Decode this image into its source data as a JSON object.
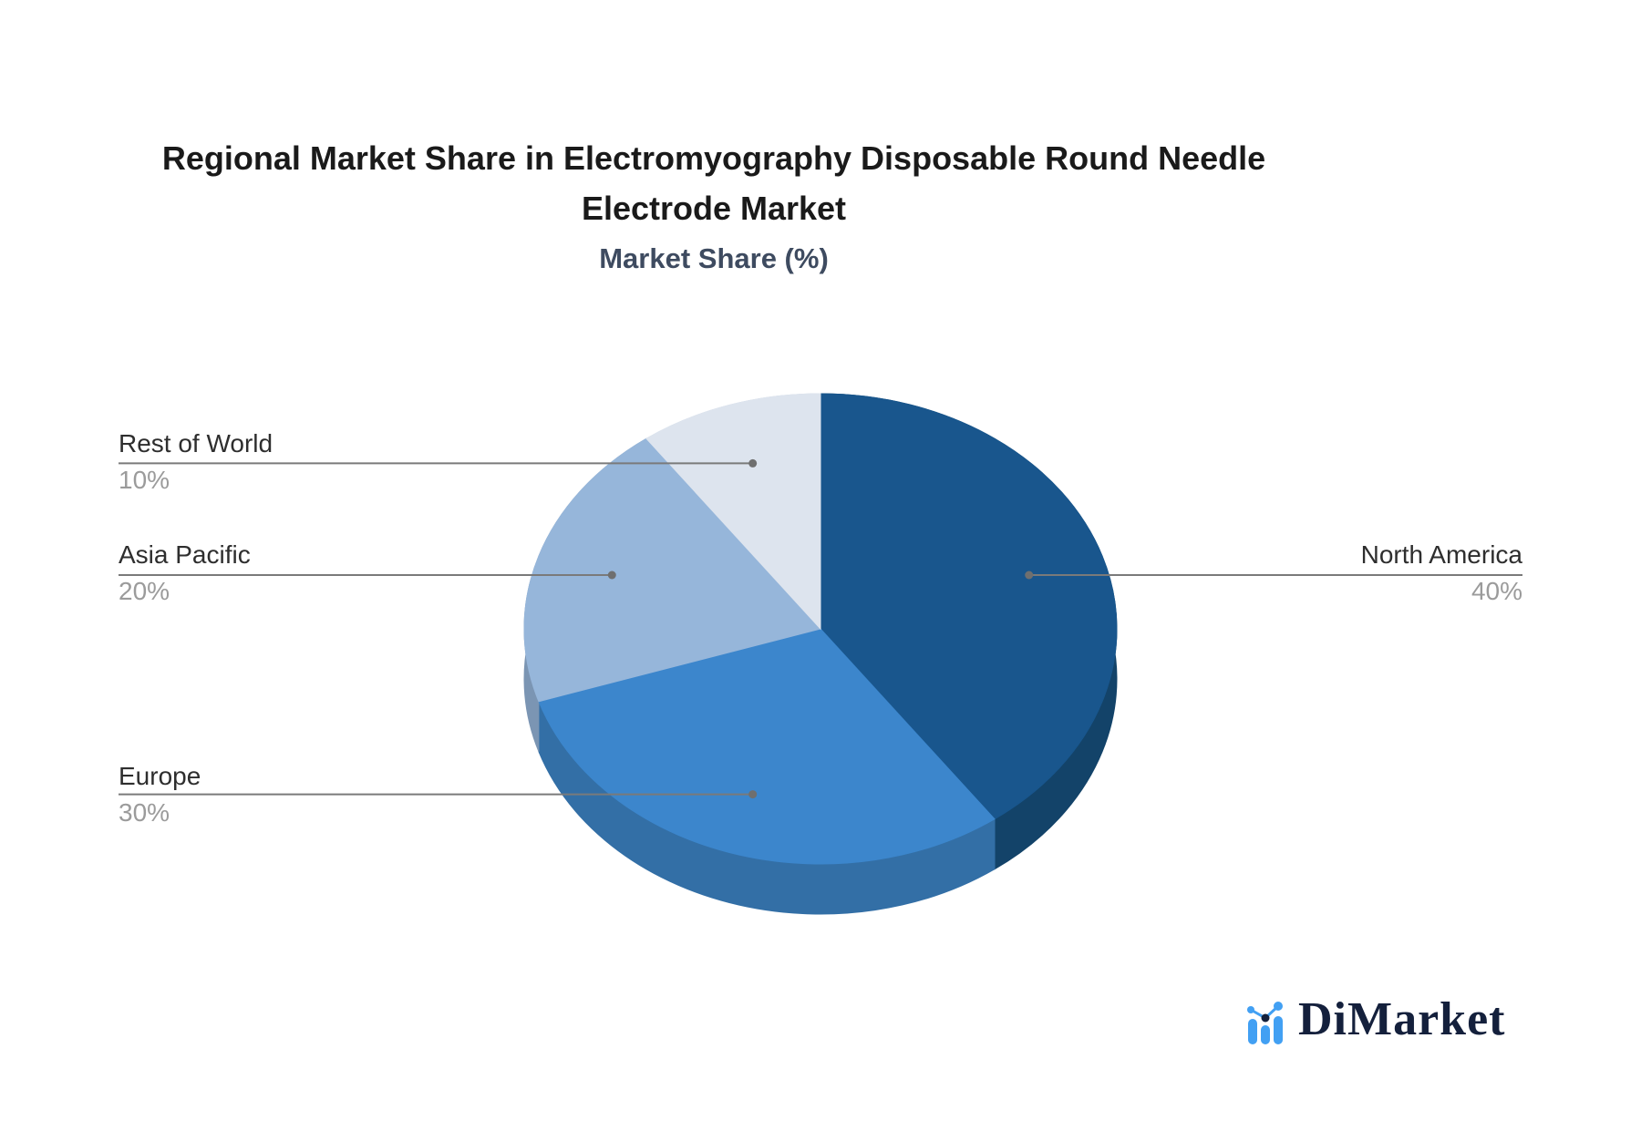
{
  "chart_data": {
    "type": "pie",
    "effect": "3d",
    "title": "Regional Market Share in Electromyography Disposable Round Needle Electrode Market",
    "subtitle": "Market Share (%)",
    "unit": "%",
    "start_angle_deg": -90,
    "direction": "clockwise",
    "slices": [
      {
        "label": "North America",
        "value": 40,
        "display_value": "40%",
        "color": "#19568D",
        "side_color": "#134369"
      },
      {
        "label": "Europe",
        "value": 30,
        "display_value": "30%",
        "color": "#3C86CC",
        "side_color": "#336FA6"
      },
      {
        "label": "Asia Pacific",
        "value": 20,
        "display_value": "20%",
        "color": "#96B6DA",
        "side_color": "#7B95B3"
      },
      {
        "label": "Rest of World",
        "value": 10,
        "display_value": "10%",
        "color": "#DDE4EE",
        "side_color": "#C3CEDC"
      }
    ],
    "legend_position": "callout-labels",
    "leader_line_color": "#7A7A7A",
    "dot_color": "#6F6F6F",
    "label_name_color": "#2E2E2E",
    "label_value_color": "#9B9B9B"
  },
  "logo": {
    "brand": "DiMarket",
    "icon": "bar-chart-with-trend-icon",
    "accent_color": "#42A0F3",
    "text_color": "#14203C"
  }
}
